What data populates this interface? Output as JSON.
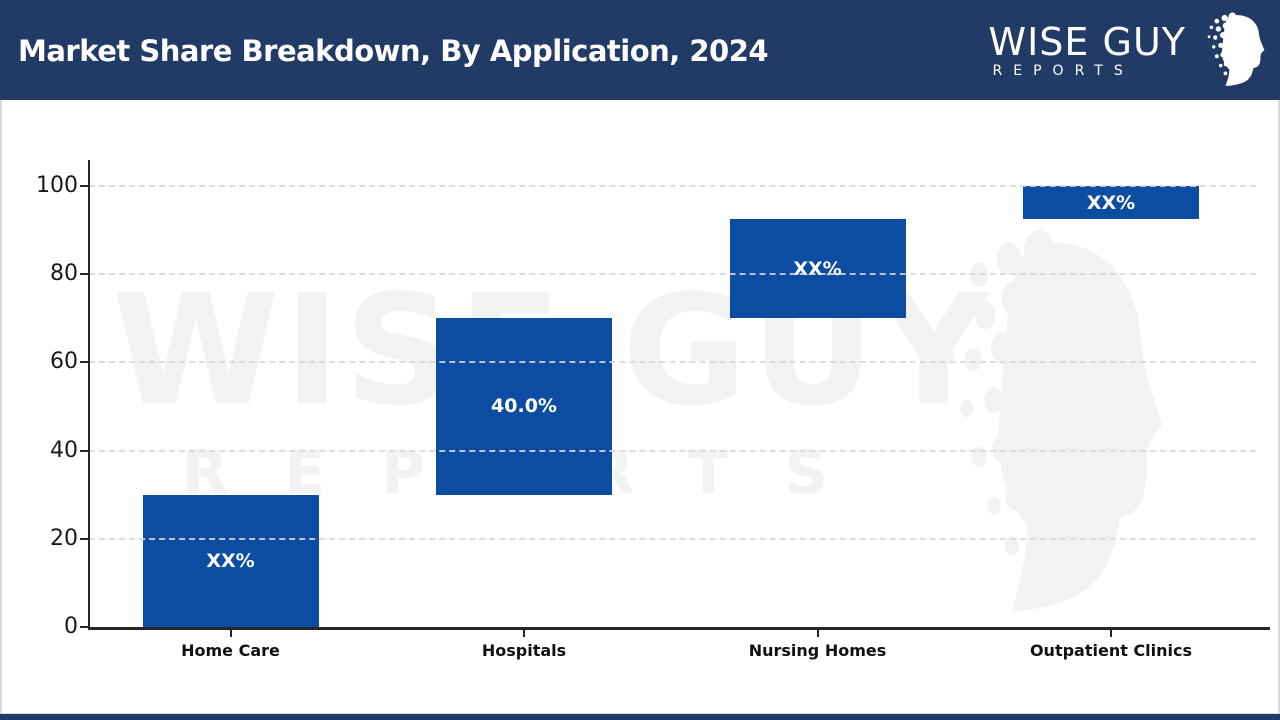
{
  "header": {
    "title": "Market Share Breakdown, By Application, 2024",
    "logo": {
      "line1": "WISE GUY",
      "line2": "REPORTS"
    }
  },
  "watermark": {
    "line1": "WISE GUY",
    "line2": "REPORTS"
  },
  "colors": {
    "header_navy": "#213a66",
    "bar_blue": "#0c4da2",
    "grid_gray": "#d9d9d9",
    "watermark_gray": "#f2f2f2",
    "axis_black": "#262626"
  },
  "chart_data": {
    "type": "bar",
    "subtype": "waterfall",
    "title": "Market Share Breakdown, By Application, 2024",
    "xlabel": "",
    "ylabel": "",
    "categories": [
      "Home Care",
      "Hospitals",
      "Nursing Homes",
      "Outpatient Clinics"
    ],
    "bars": [
      {
        "category": "Home Care",
        "start": 0,
        "end": 30,
        "value": 30,
        "label": "XX%"
      },
      {
        "category": "Hospitals",
        "start": 30,
        "end": 70,
        "value": 40,
        "label": "40.0%"
      },
      {
        "category": "Nursing Homes",
        "start": 70,
        "end": 92.5,
        "value": 22.5,
        "label": "XX%"
      },
      {
        "category": "Outpatient Clinics",
        "start": 92.5,
        "end": 100,
        "value": 7.5,
        "label": "XX%"
      }
    ],
    "yticks": [
      0,
      20,
      40,
      60,
      80,
      100
    ],
    "ylim": [
      0,
      106
    ],
    "grid": "horizontal-dashed",
    "legend": "none",
    "bar_color": "#0c4da2",
    "bar_label_color": "#ffffff"
  }
}
